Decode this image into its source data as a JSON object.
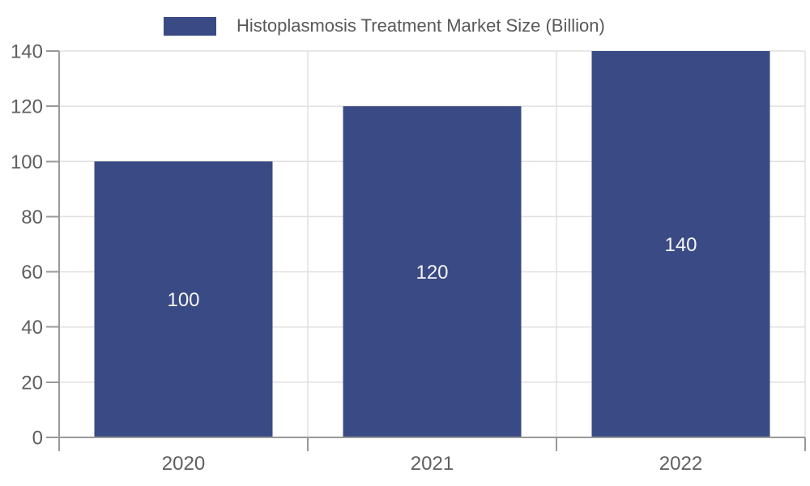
{
  "legend": {
    "label": "Histoplasmosis Treatment Market Size (Billion)"
  },
  "chart_data": {
    "type": "bar",
    "title": "Histoplasmosis Treatment Market Size (Billion)",
    "categories": [
      "2020",
      "2021",
      "2022"
    ],
    "values": [
      100,
      120,
      140
    ],
    "bar_value_labels": [
      "100",
      "120",
      "140"
    ],
    "xlabel": "",
    "ylabel": "",
    "ylim": [
      0,
      140
    ],
    "yticks": [
      0,
      20,
      40,
      60,
      80,
      100,
      120,
      140
    ],
    "grid": true,
    "legend_position": "top",
    "colors": {
      "bar": "#3a4a84",
      "grid": "#e0e0e0",
      "axis": "#999999",
      "tick_label": "#5f5f5f",
      "value_label": "#f5f5f5"
    }
  }
}
